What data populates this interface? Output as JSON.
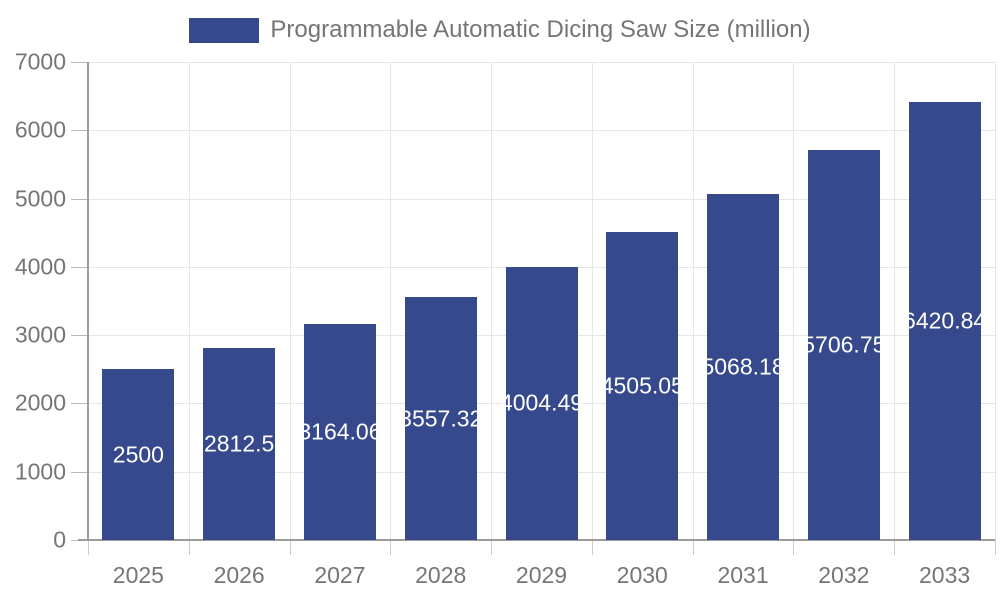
{
  "legend": {
    "label": "Programmable Automatic Dicing Saw Size (million)"
  },
  "chart_data": {
    "type": "bar",
    "title": "Programmable Automatic Dicing Saw Size (million)",
    "categories": [
      "2025",
      "2026",
      "2027",
      "2028",
      "2029",
      "2030",
      "2031",
      "2032",
      "2033"
    ],
    "series": [
      {
        "name": "Programmable Automatic Dicing Saw Size (million)",
        "values": [
          2500,
          2812.5,
          3164.06,
          3557.32,
          4004.49,
          4505.05,
          5068.18,
          5706.75,
          6420.84
        ]
      }
    ],
    "value_labels": [
      "2500",
      "2812.5",
      "3164.06",
      "3557.32",
      "4004.49",
      "4505.05",
      "5068.18",
      "5706.75",
      "6420.84"
    ],
    "xlabel": "",
    "ylabel": "",
    "ylim": [
      0,
      7000
    ],
    "yticks": [
      0,
      1000,
      2000,
      3000,
      4000,
      5000,
      6000,
      7000
    ],
    "grid": true,
    "legend_position": "top",
    "colors": {
      "bar": "#36498c",
      "bar_label": "#ffffff",
      "axis_text": "#757575",
      "grid_line": "#e6e6e6",
      "axis_line": "#9b9b9b",
      "tick_line": "#c2c2c2"
    }
  }
}
